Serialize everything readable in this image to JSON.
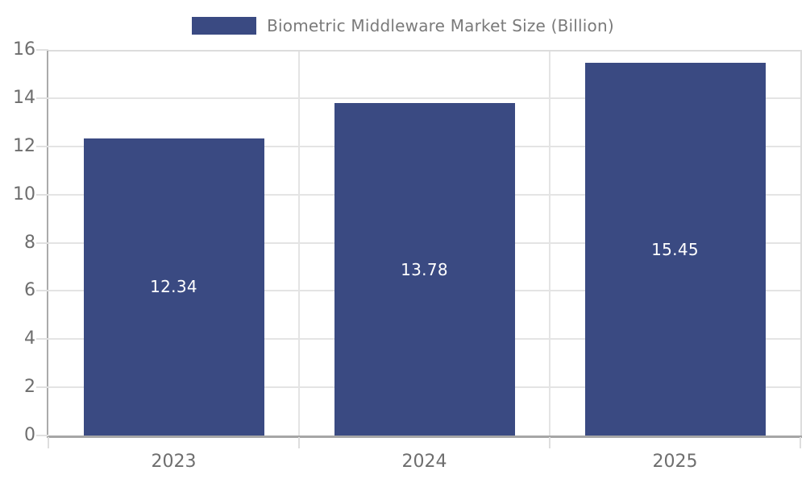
{
  "chart_data": {
    "type": "bar",
    "title": "",
    "categories": [
      "2023",
      "2024",
      "2025"
    ],
    "values": [
      12.34,
      13.78,
      15.45
    ],
    "value_labels": [
      "12.34",
      "13.78",
      "15.45"
    ],
    "series_name": "Biometric Middleware Market Size (Billion)",
    "xlabel": "",
    "ylabel": "",
    "ylim": [
      0,
      16
    ],
    "yticks": [
      0,
      2,
      4,
      6,
      8,
      10,
      12,
      14,
      16
    ],
    "grid": true,
    "legend_position": "top-center",
    "bar_color": "#3a4a82",
    "bar_label_color": "#ffffff",
    "gridline_color": "#e4e4e4",
    "tick_label_color": "#6e6e6e",
    "legend_text_color": "#7a7a7a"
  },
  "legend": {
    "label": "Biometric Middleware Market Size (Billion)",
    "swatch_color": "#3a4a82"
  }
}
